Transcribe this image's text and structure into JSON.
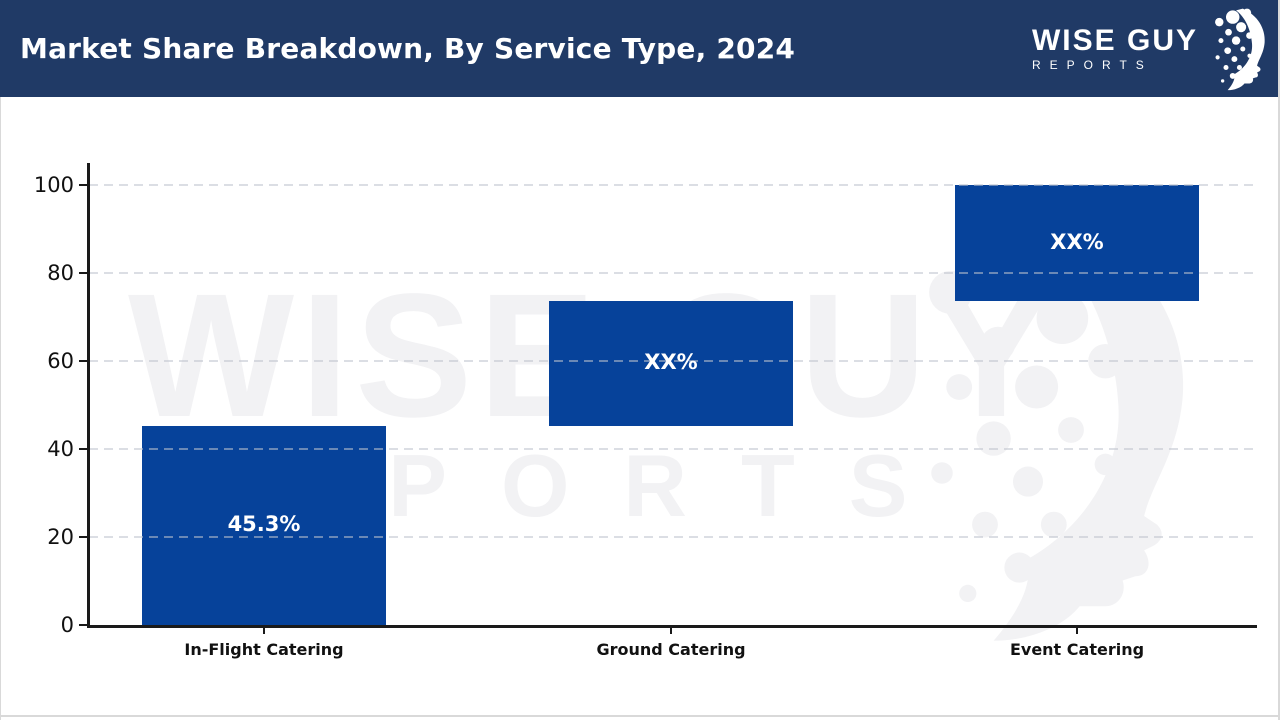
{
  "header": {
    "title": "Market Share Breakdown, By Service Type, 2024",
    "logo": {
      "line1": "WISE GUY",
      "line2": "REPORTS"
    }
  },
  "watermark": {
    "line1": "WISE GUY",
    "line2": "REPORTS"
  },
  "colors": {
    "header_bg": "#203a66",
    "bar": "#06429a",
    "bar_label_text": "#ffffff",
    "axis": "#1a1a1a",
    "gridline": "#d9dde4",
    "watermark": "#f2f2f4",
    "title_text": "#ffffff",
    "tick_text": "#111111"
  },
  "chart_data": {
    "type": "bar",
    "subtype": "waterfall-floating-bars",
    "title": "Market Share Breakdown, By Service Type, 2024",
    "categories": [
      "In-Flight Catering",
      "Ground Catering",
      "Event Catering"
    ],
    "bars": [
      {
        "category": "In-Flight Catering",
        "base": 0,
        "top": 45.3,
        "label": "45.3%"
      },
      {
        "category": "Ground Catering",
        "base": 45.3,
        "top": 73.6,
        "label": "XX%"
      },
      {
        "category": "Event Catering",
        "base": 73.6,
        "top": 100,
        "label": "XX%"
      }
    ],
    "yticks": [
      0,
      20,
      40,
      60,
      80,
      100
    ],
    "ylim": [
      0,
      105
    ],
    "xlabel": "",
    "ylabel": "",
    "grid": "horizontal-dashed-over-bars",
    "legend": "none"
  }
}
